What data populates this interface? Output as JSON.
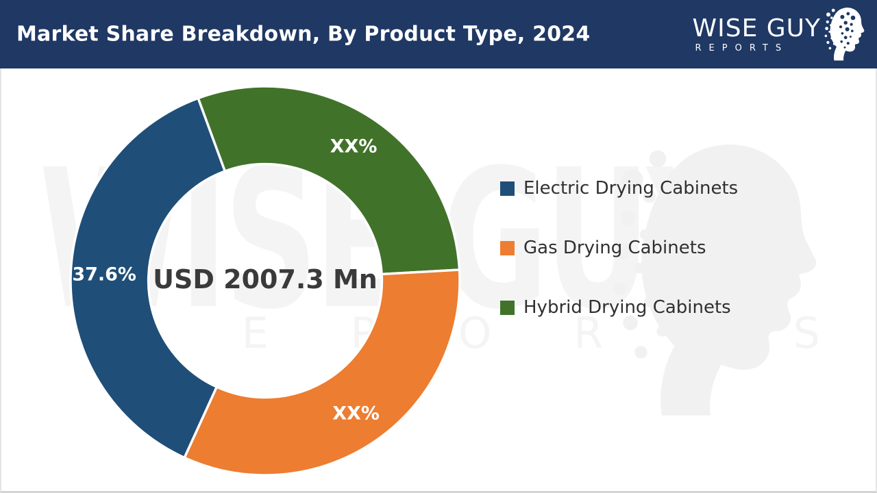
{
  "header": {
    "title": "Market Share Breakdown, By Product Type, 2024",
    "bg_color": "#1f3864",
    "logo": {
      "line1": "WISE GUY",
      "line2": "REPORTS"
    }
  },
  "watermark": {
    "line1": "WISE GUY",
    "line2": "R E P O R T S"
  },
  "chart_data": {
    "type": "pie",
    "subtype": "donut",
    "title": "Market Share Breakdown, By Product Type, 2024",
    "center_label": "USD 2007.3 Mn",
    "units": "percent of market share",
    "start_angle_deg_clockwise_from_top": 204.5,
    "inner_radius_ratio": 0.6,
    "legend_position": "right",
    "segments": [
      {
        "name": "Electric Drying Cabinets",
        "value_pct": 37.6,
        "label": "37.6%",
        "color": "#1f4e78"
      },
      {
        "name": "Hybrid Drying Cabinets",
        "value_pct": 29.7,
        "label": "XX%",
        "color": "#41722a"
      },
      {
        "name": "Gas Drying Cabinets",
        "value_pct": 32.7,
        "label": "XX%",
        "color": "#ed7d31"
      }
    ],
    "legend": [
      {
        "label": "Electric Drying Cabinets",
        "color": "#1f4e78"
      },
      {
        "label": "Gas Drying Cabinets",
        "color": "#ed7d31"
      },
      {
        "label": "Hybrid Drying Cabinets",
        "color": "#41722a"
      }
    ]
  }
}
